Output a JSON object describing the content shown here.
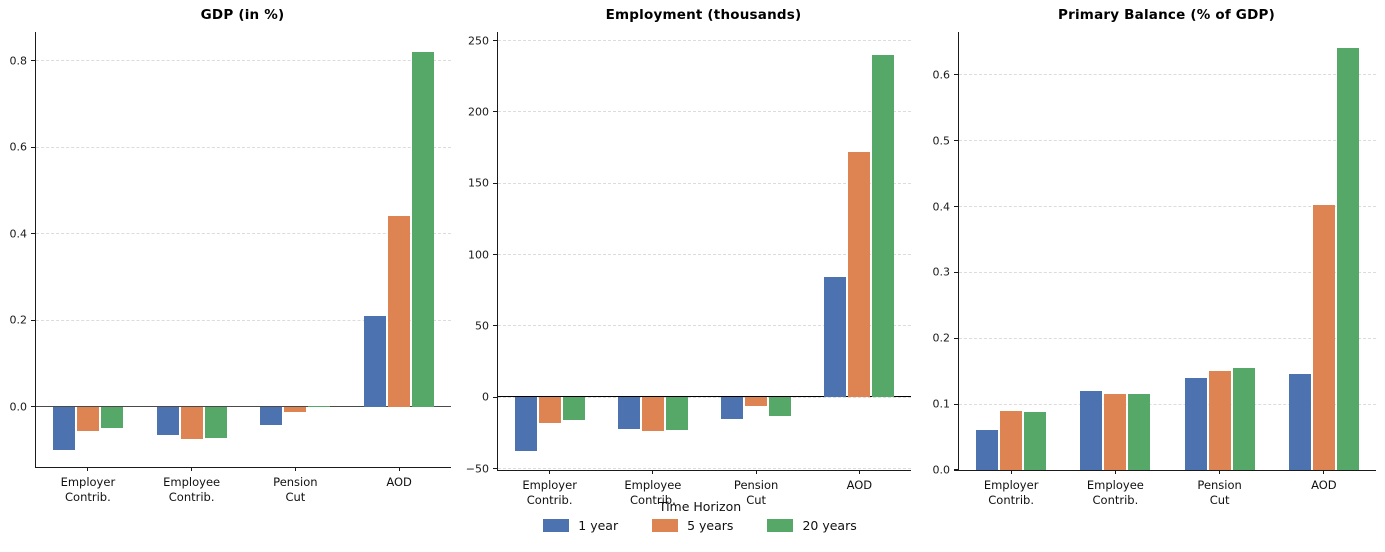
{
  "legend": {
    "title": "Time Horizon",
    "position": "bottom-center",
    "items": [
      {
        "label": "1 year",
        "color": "#4C72B0"
      },
      {
        "label": "5 years",
        "color": "#DD8452"
      },
      {
        "label": "20 years",
        "color": "#55A868"
      }
    ]
  },
  "chart_data": [
    {
      "type": "bar",
      "title": "GDP (in %)",
      "xlabel": "",
      "ylabel": "",
      "categories": [
        "Employer\nContrib.",
        "Employee\nContrib.",
        "Pension\nCut",
        "AOD"
      ],
      "series": [
        {
          "name": "1 year",
          "color": "#4C72B0",
          "values": [
            -0.1,
            -0.065,
            -0.042,
            0.21
          ]
        },
        {
          "name": "5 years",
          "color": "#DD8452",
          "values": [
            -0.055,
            -0.075,
            -0.013,
            0.44
          ]
        },
        {
          "name": "20 years",
          "color": "#55A868",
          "values": [
            -0.05,
            -0.072,
            0.003,
            0.82
          ]
        }
      ],
      "ylim": [
        -0.139,
        0.866
      ],
      "yticks": [
        0.0,
        0.2,
        0.4,
        0.6,
        0.8
      ],
      "ytick_labels": [
        "0.0",
        "0.2",
        "0.4",
        "0.6",
        "0.8"
      ],
      "grid": true,
      "zeroline": true,
      "zeroline_color": "#4a4a4a"
    },
    {
      "type": "bar",
      "title": "Employment (thousands)",
      "xlabel": "",
      "ylabel": "",
      "categories": [
        "Employer\nContrib.",
        "Employee\nContrib.",
        "Pension\nCut",
        "AOD"
      ],
      "series": [
        {
          "name": "1 year",
          "color": "#4C72B0",
          "values": [
            -38,
            -22,
            -15,
            84
          ]
        },
        {
          "name": "5 years",
          "color": "#DD8452",
          "values": [
            -18,
            -24,
            -6,
            172
          ]
        },
        {
          "name": "20 years",
          "color": "#55A868",
          "values": [
            -16,
            -23,
            -13,
            240
          ]
        }
      ],
      "ylim": [
        -51,
        256
      ],
      "yticks": [
        -50,
        0,
        50,
        100,
        150,
        200,
        250
      ],
      "ytick_labels": [
        "−50",
        "0",
        "50",
        "100",
        "150",
        "200",
        "250"
      ],
      "grid": true,
      "zeroline": true,
      "zeroline_color": "#000000"
    },
    {
      "type": "bar",
      "title": "Primary Balance (% of GDP)",
      "xlabel": "",
      "ylabel": "",
      "categories": [
        "Employer\nContrib.",
        "Employee\nContrib.",
        "Pension\nCut",
        "AOD"
      ],
      "series": [
        {
          "name": "1 year",
          "color": "#4C72B0",
          "values": [
            0.06,
            0.12,
            0.14,
            0.145
          ]
        },
        {
          "name": "5 years",
          "color": "#DD8452",
          "values": [
            0.09,
            0.116,
            0.15,
            0.403
          ]
        },
        {
          "name": "20 years",
          "color": "#55A868",
          "values": [
            0.088,
            0.115,
            0.155,
            0.64
          ]
        }
      ],
      "ylim": [
        0,
        0.665
      ],
      "yticks": [
        0.0,
        0.1,
        0.2,
        0.3,
        0.4,
        0.5,
        0.6
      ],
      "ytick_labels": [
        "0.0",
        "0.1",
        "0.2",
        "0.3",
        "0.4",
        "0.5",
        "0.6"
      ],
      "grid": true,
      "zeroline": false,
      "zeroline_color": ""
    }
  ]
}
